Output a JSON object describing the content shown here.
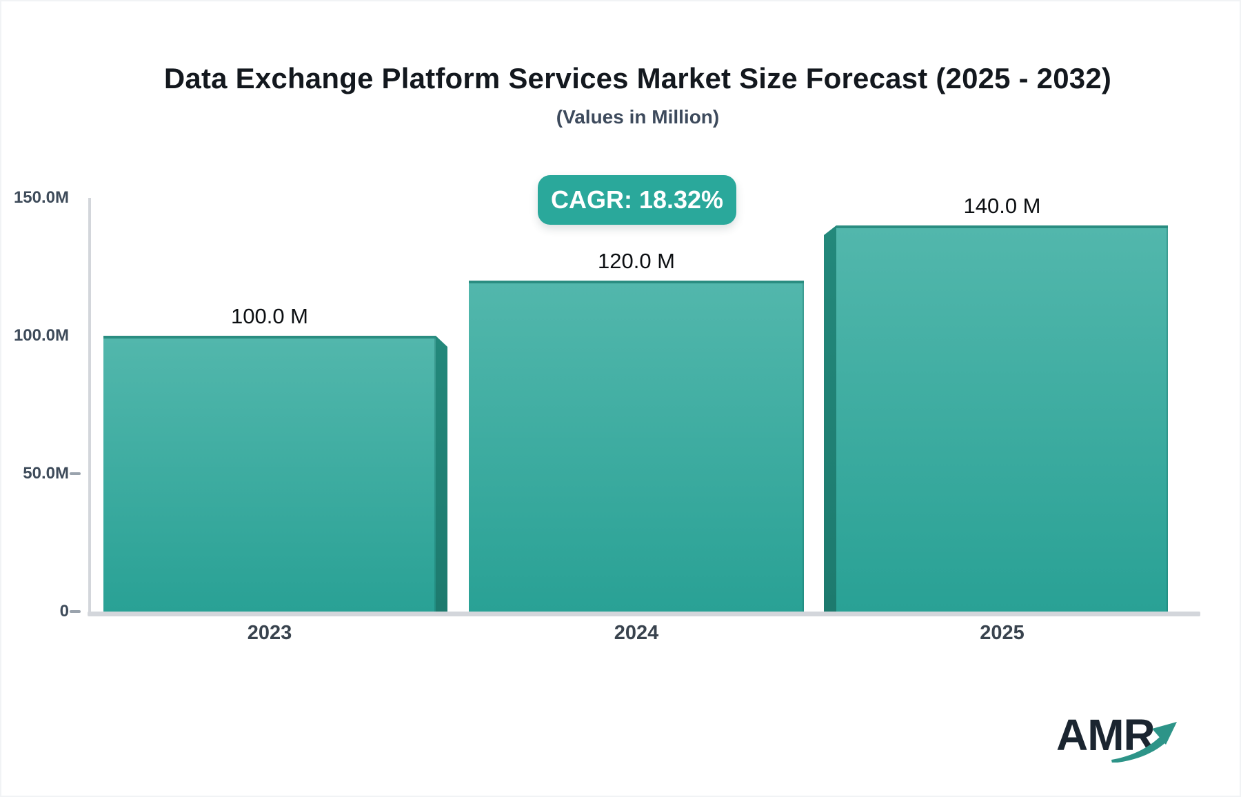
{
  "chart_data": {
    "type": "bar",
    "title": "Data Exchange Platform Services Market Size Forecast (2025 - 2032)",
    "subtitle": "(Values in Million)",
    "cagr_label": "CAGR: 18.32%",
    "cagr_percent": 18.32,
    "unit": "Million",
    "categories": [
      "2023",
      "2024",
      "2025"
    ],
    "values": [
      100,
      120,
      140
    ],
    "value_labels": [
      "100.0 M",
      "120.0 M",
      "140.0 M"
    ],
    "ylim": [
      0,
      150
    ],
    "y_ticks": [
      "150.0M",
      "100.0M",
      "50.0M",
      "0"
    ],
    "y_tick_values": [
      150,
      100,
      50,
      0
    ],
    "xlabel": "",
    "ylabel": "",
    "grid": false,
    "legend": "none"
  },
  "logo": {
    "text": "AMR"
  },
  "colors": {
    "accent": "#2aa89b",
    "bar-top": "#52b7ac",
    "bar-bottom": "#29a195",
    "bar-edge": "#2a8d81",
    "bar-side": "#23887b",
    "bar-side-dark": "#1d7a6e",
    "axis": "#d3d6db",
    "tick": "#9aa3ad",
    "ylabel": "#3e4b5a",
    "xlabel": "#39434e",
    "value": "#0c0f12",
    "title": "#13181e",
    "subtitle": "#3d4a5c",
    "logo-text": "#1b2530",
    "logo-arrow": "#2d9488"
  }
}
